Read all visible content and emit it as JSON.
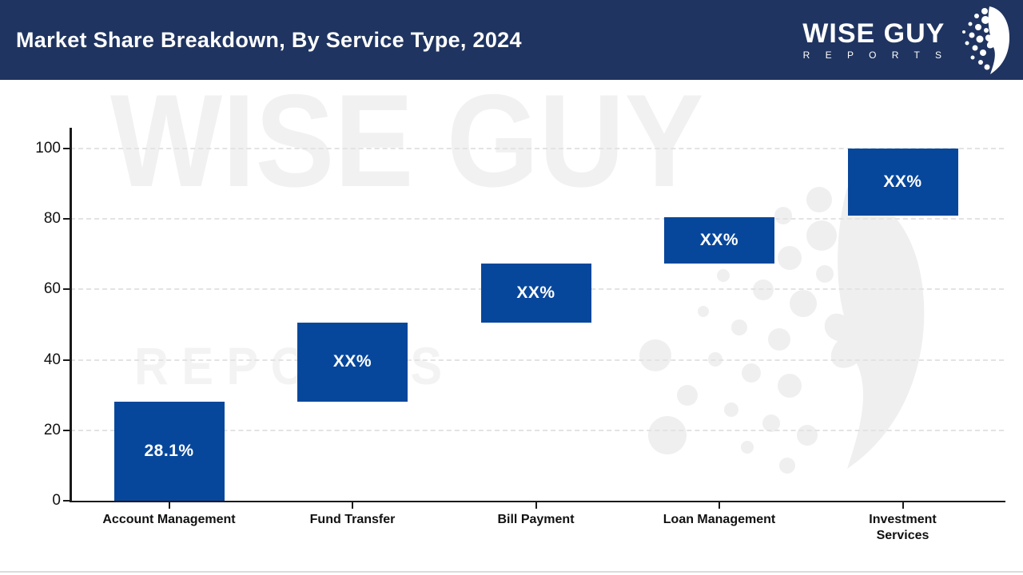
{
  "header": {
    "title": "Market Share Breakdown, By Service Type, 2024",
    "logo": {
      "wordmark": "WISE GUY",
      "subtext": "R E P O R T S"
    }
  },
  "watermark": {
    "line1": "WISE GUY",
    "line2": "R E P O R T S"
  },
  "chart_data": {
    "type": "bar",
    "subtype": "floating-waterfall",
    "title": "Market Share Breakdown, By Service Type, 2024",
    "categories": [
      "Account Management",
      "Fund Transfer",
      "Bill Payment",
      "Loan Management",
      "Investment\nServices"
    ],
    "bars": [
      {
        "category": "Account Management",
        "start": 0,
        "end": 28.1,
        "label": "28.1%"
      },
      {
        "category": "Fund Transfer",
        "start": 28.1,
        "end": 50.6,
        "label": "XX%"
      },
      {
        "category": "Bill Payment",
        "start": 50.6,
        "end": 67.4,
        "label": "XX%"
      },
      {
        "category": "Loan Management",
        "start": 67.4,
        "end": 80.6,
        "label": "XX%"
      },
      {
        "category": "Investment Services",
        "start": 81.0,
        "end": 100,
        "label": "XX%"
      }
    ],
    "yticks": [
      0,
      20,
      40,
      60,
      80,
      100
    ],
    "ylim": [
      0,
      105
    ],
    "xlabel": "",
    "ylabel": "",
    "legend": "none",
    "grid": "horizontal-dashed",
    "bar_color": "#07479b",
    "bar_label_color": "#ffffff",
    "header_color": "#1f3460"
  }
}
